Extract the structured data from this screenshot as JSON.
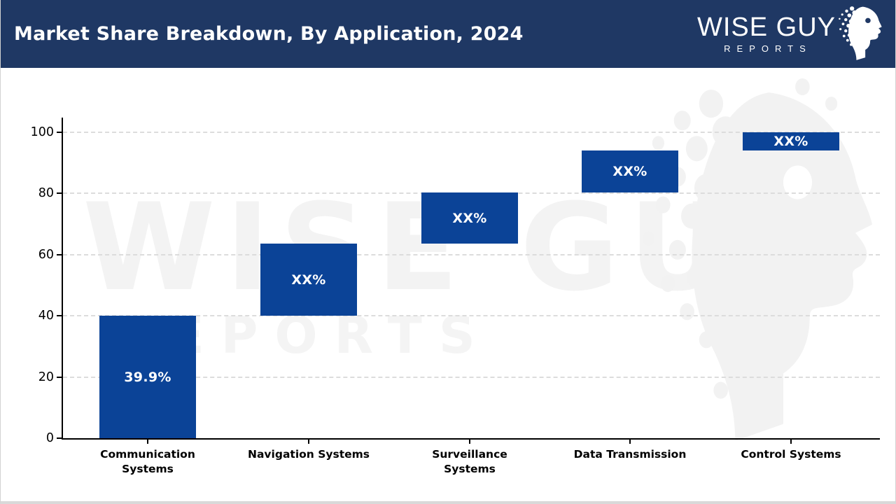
{
  "header": {
    "title": "Market Share Breakdown, By Application, 2024",
    "background_color": "#1f3864",
    "logo": {
      "brand_line1": "WISE GUY",
      "brand_line2": "REPORTS"
    }
  },
  "watermark": {
    "text_line1": "WISE GUY",
    "text_line2": "REPORTS"
  },
  "chart_data": {
    "type": "bar",
    "subtype": "waterfall",
    "title": "Market Share Breakdown, By Application, 2024",
    "xlabel": "",
    "ylabel": "",
    "ylim": [
      0,
      105
    ],
    "yticks": [
      0,
      20,
      40,
      60,
      80,
      100
    ],
    "grid": "horizontal-dashed",
    "legend": "none",
    "bar_color": "#0b4397",
    "bar_label_color": "#ffffff",
    "categories": [
      "Communication Systems",
      "Navigation Systems",
      "Surveillance Systems",
      "Data Transmission",
      "Control Systems"
    ],
    "segments": [
      {
        "category": "Communication Systems",
        "category_lines": [
          "Communication",
          "Systems"
        ],
        "start": 0,
        "end": 39.9,
        "value_label": "39.9%"
      },
      {
        "category": "Navigation Systems",
        "category_lines": [
          "Navigation Systems"
        ],
        "start": 39.9,
        "end": 63.5,
        "value_label": "XX%"
      },
      {
        "category": "Surveillance Systems",
        "category_lines": [
          "Surveillance",
          "Systems"
        ],
        "start": 63.5,
        "end": 80.2,
        "value_label": "XX%"
      },
      {
        "category": "Data Transmission",
        "category_lines": [
          "Data Transmission"
        ],
        "start": 80.2,
        "end": 94.0,
        "value_label": "XX%"
      },
      {
        "category": "Control Systems",
        "category_lines": [
          "Control Systems"
        ],
        "start": 94.0,
        "end": 100.0,
        "value_label": "XX%"
      }
    ]
  }
}
